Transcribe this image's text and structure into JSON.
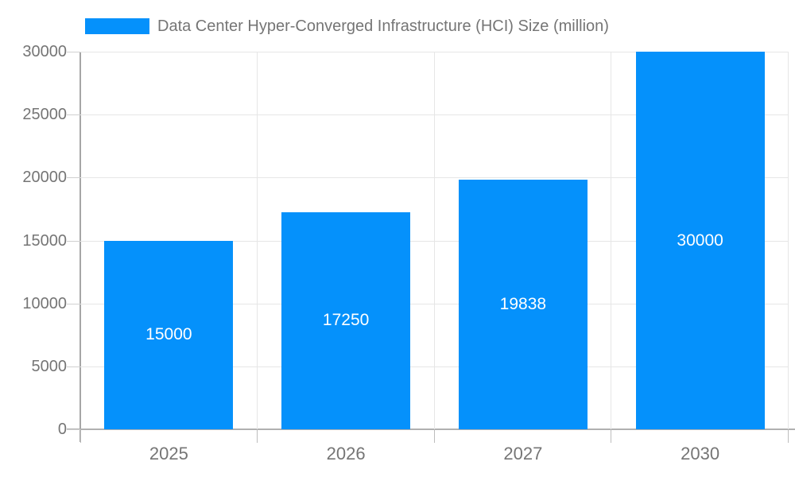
{
  "legend": {
    "label": "Data Center Hyper-Converged Infrastructure (HCI) Size (million)",
    "swatch_color": "#0591fb"
  },
  "chart_data": {
    "type": "bar",
    "categories": [
      "2025",
      "2026",
      "2027",
      "2030"
    ],
    "values": [
      15000,
      17250,
      19838,
      30000
    ],
    "value_labels": [
      "15000",
      "17250",
      "19838",
      "30000"
    ],
    "series_name": "Data Center Hyper-Converged Infrastructure (HCI) Size (million)",
    "title": "",
    "xlabel": "",
    "ylabel": "",
    "ylim": [
      0,
      30000
    ],
    "yticks": [
      0,
      5000,
      10000,
      15000,
      20000,
      25000,
      30000
    ],
    "grid": true,
    "legend_position": "top-left",
    "bar_color": "#0591fb",
    "value_label_position": "inside-center"
  },
  "colors": {
    "bar": "#0591fb",
    "axis_text": "#757575",
    "grid_line": "#e6e6e6",
    "axis_line": "#a6a6a6",
    "bar_value_text": "#ffffff",
    "background": "#ffffff"
  }
}
